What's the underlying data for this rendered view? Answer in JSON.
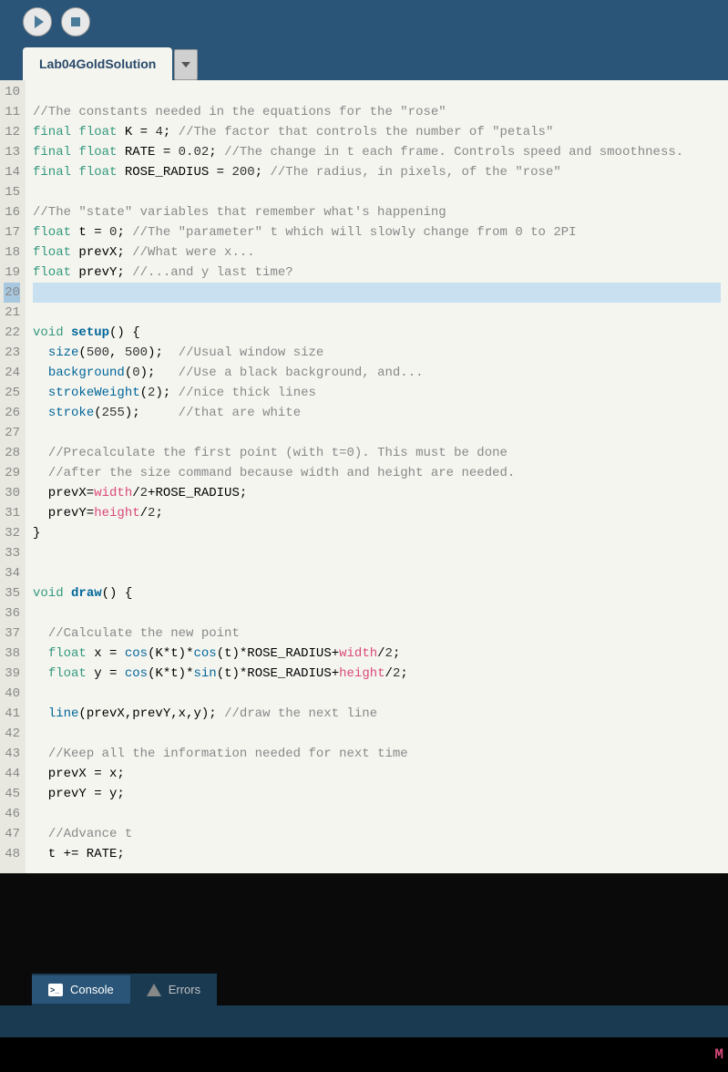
{
  "tab": {
    "title": "Lab04GoldSolution"
  },
  "bottomTabs": {
    "console": "Console",
    "errors": "Errors"
  },
  "bottomCorner": "M",
  "code": {
    "startLine": 10,
    "lines": [
      {
        "n": 10,
        "html": ""
      },
      {
        "n": 11,
        "html": "<span class='comment'>//The constants needed in the equations for the \"rose\"</span>"
      },
      {
        "n": 12,
        "html": "<span class='kw'>final</span> <span class='type'>float</span> K = <span class='num'>4</span>; <span class='comment'>//The factor that controls the number of \"petals\"</span>"
      },
      {
        "n": 13,
        "html": "<span class='kw'>final</span> <span class='type'>float</span> RATE = <span class='num'>0.02</span>; <span class='comment'>//The change in t each frame. Controls speed and smoothness.</span>"
      },
      {
        "n": 14,
        "html": "<span class='kw'>final</span> <span class='type'>float</span> ROSE_RADIUS = <span class='num'>200</span>; <span class='comment'>//The radius, in pixels, of the \"rose\"</span>"
      },
      {
        "n": 15,
        "html": ""
      },
      {
        "n": 16,
        "html": "<span class='comment'>//The \"state\" variables that remember what's happening</span>"
      },
      {
        "n": 17,
        "html": "<span class='type'>float</span> t = <span class='num'>0</span>; <span class='comment'>//The \"parameter\" t which will slowly change from 0 to 2PI</span>"
      },
      {
        "n": 18,
        "html": "<span class='type'>float</span> prevX; <span class='comment'>//What were x...</span>"
      },
      {
        "n": 19,
        "html": "<span class='type'>float</span> prevY; <span class='comment'>//...and y last time?</span>"
      },
      {
        "n": 20,
        "html": "",
        "highlight": true
      },
      {
        "n": 21,
        "html": ""
      },
      {
        "n": 22,
        "html": "<span class='type'>void</span> <span class='func'>setup</span>() {"
      },
      {
        "n": 23,
        "html": "  <span class='builtin'>size</span>(<span class='num'>500</span>, <span class='num'>500</span>);  <span class='comment'>//Usual window size</span>"
      },
      {
        "n": 24,
        "html": "  <span class='builtin'>background</span>(<span class='num'>0</span>);   <span class='comment'>//Use a black background, and...</span>"
      },
      {
        "n": 25,
        "html": "  <span class='builtin'>strokeWeight</span>(<span class='num'>2</span>); <span class='comment'>//nice thick lines</span>"
      },
      {
        "n": 26,
        "html": "  <span class='builtin'>stroke</span>(<span class='num'>255</span>);     <span class='comment'>//that are white</span>"
      },
      {
        "n": 27,
        "html": ""
      },
      {
        "n": 28,
        "html": "  <span class='comment'>//Precalculate the first point (with t=0). This must be done</span>"
      },
      {
        "n": 29,
        "html": "  <span class='comment'>//after the size command because width and height are needed.</span>"
      },
      {
        "n": 30,
        "html": "  prevX=<span class='sysvar'>width</span>/<span class='num'>2</span>+ROSE_RADIUS;"
      },
      {
        "n": 31,
        "html": "  prevY=<span class='sysvar'>height</span>/<span class='num'>2</span>;"
      },
      {
        "n": 32,
        "html": "}"
      },
      {
        "n": 33,
        "html": ""
      },
      {
        "n": 34,
        "html": ""
      },
      {
        "n": 35,
        "html": "<span class='type'>void</span> <span class='func'>draw</span>() {"
      },
      {
        "n": 36,
        "html": ""
      },
      {
        "n": 37,
        "html": "  <span class='comment'>//Calculate the new point</span>"
      },
      {
        "n": 38,
        "html": "  <span class='type'>float</span> x = <span class='builtin'>cos</span>(K*t)*<span class='builtin'>cos</span>(t)*ROSE_RADIUS+<span class='sysvar'>width</span>/<span class='num'>2</span>;"
      },
      {
        "n": 39,
        "html": "  <span class='type'>float</span> y = <span class='builtin'>cos</span>(K*t)*<span class='builtin'>sin</span>(t)*ROSE_RADIUS+<span class='sysvar'>height</span>/<span class='num'>2</span>;"
      },
      {
        "n": 40,
        "html": ""
      },
      {
        "n": 41,
        "html": "  <span class='builtin'>line</span>(prevX,prevY,x,y); <span class='comment'>//draw the next line</span>"
      },
      {
        "n": 42,
        "html": ""
      },
      {
        "n": 43,
        "html": "  <span class='comment'>//Keep all the information needed for next time</span>"
      },
      {
        "n": 44,
        "html": "  prevX = x;"
      },
      {
        "n": 45,
        "html": "  prevY = y;"
      },
      {
        "n": 46,
        "html": ""
      },
      {
        "n": 47,
        "html": "  <span class='comment'>//Advance t</span>"
      },
      {
        "n": 48,
        "html": "  t += RATE;"
      }
    ]
  }
}
